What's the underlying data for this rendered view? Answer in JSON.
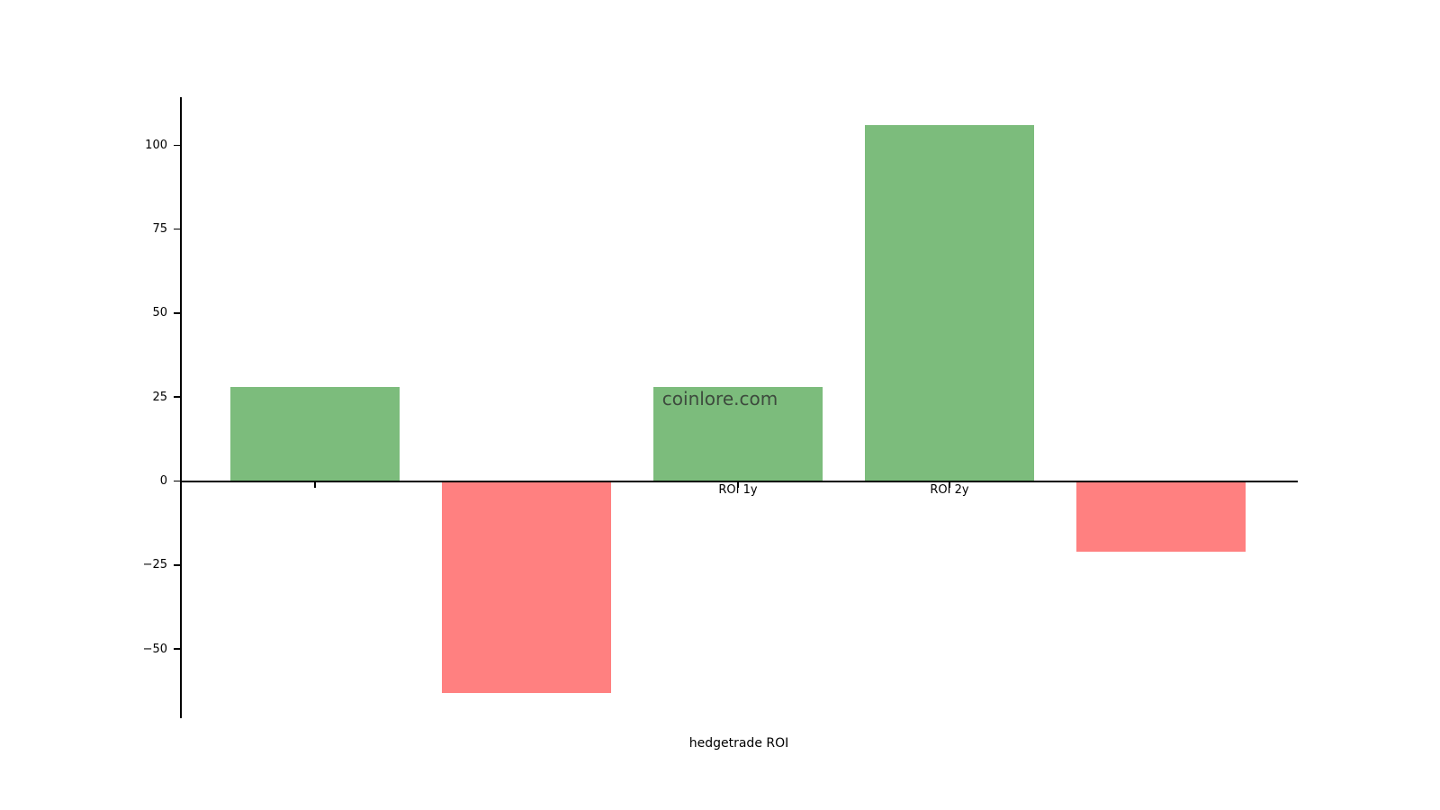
{
  "page": {
    "background_color": "#ffffff"
  },
  "chart_data": {
    "type": "bar",
    "title": "hedgetrade ROI",
    "watermark": "coinlore.com",
    "categories": [
      "",
      "",
      "ROI 1y",
      "ROI 2y",
      ""
    ],
    "values": [
      28,
      -63,
      28,
      106,
      -21
    ],
    "positive_color": "#7cbc7c",
    "negative_color": "#ff8080",
    "axis_color": "#000000",
    "text_color": "#000000",
    "watermark_color": "rgba(45,45,45,0.8)",
    "y_ticks": [
      100,
      75,
      50,
      25,
      0,
      -25,
      -50
    ],
    "y_tick_labels": [
      "100",
      "75",
      "50",
      "25",
      "0",
      "−25",
      "−50"
    ],
    "ylim": [
      -70.6,
      114.3
    ],
    "xlabel": "",
    "ylabel": "",
    "grid": false,
    "legend_position": "none"
  }
}
